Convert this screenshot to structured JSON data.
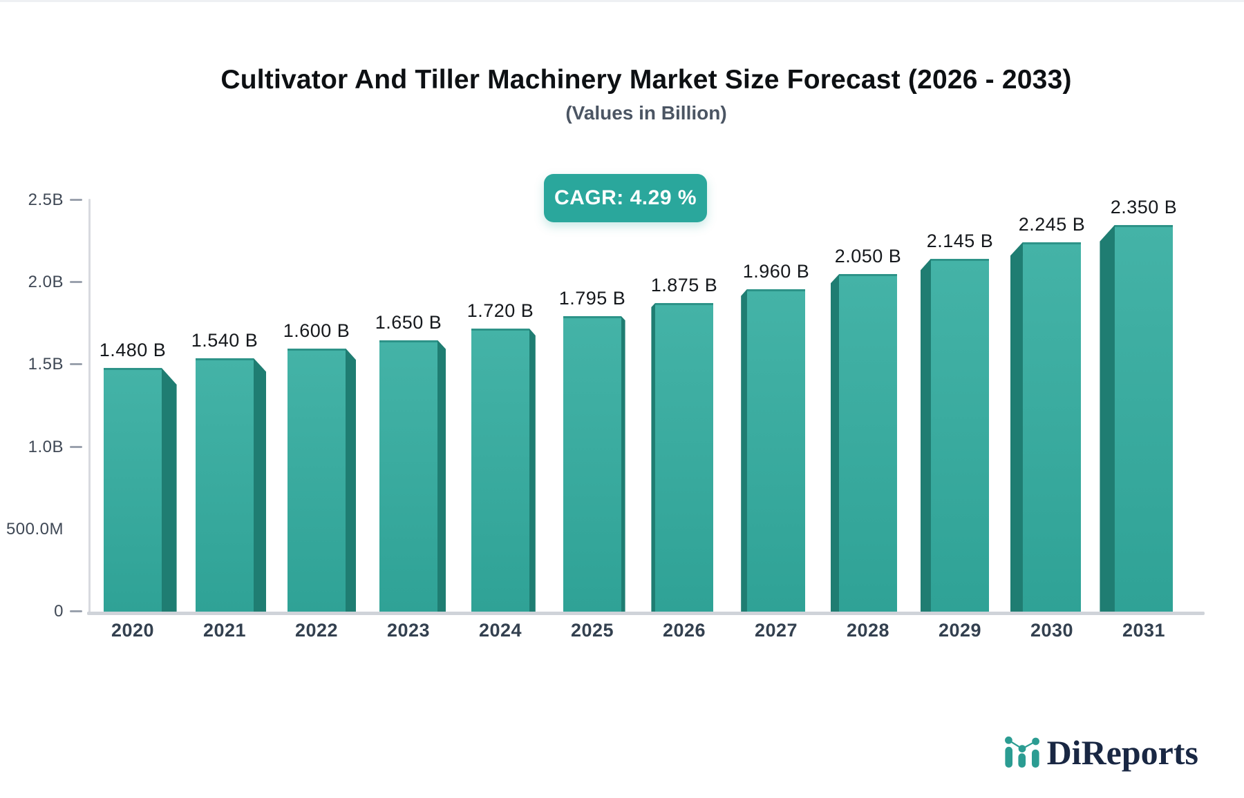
{
  "header": {
    "title": "Cultivator And Tiller Machinery Market Size Forecast (2026 - 2033)",
    "subtitle": "(Values in Billion)"
  },
  "cagr_badge": {
    "label": "CAGR: 4.29 %",
    "bg_color": "#2aa79c",
    "text_color": "#ffffff"
  },
  "chart_data": {
    "type": "bar",
    "title": "Cultivator And Tiller Machinery Market Size Forecast (2026 - 2033)",
    "subtitle": "(Values in Billion)",
    "categories": [
      "2020",
      "2021",
      "2022",
      "2023",
      "2024",
      "2025",
      "2026",
      "2027",
      "2028",
      "2029",
      "2030",
      "2031"
    ],
    "values": [
      1.48,
      1.54,
      1.6,
      1.65,
      1.72,
      1.795,
      1.875,
      1.96,
      2.05,
      2.145,
      2.245,
      2.35
    ],
    "value_labels": [
      "1.480 B",
      "1.540 B",
      "1.600 B",
      "1.650 B",
      "1.720 B",
      "1.795 B",
      "1.875 B",
      "1.960 B",
      "2.050 B",
      "2.145 B",
      "2.245 B",
      "2.350 B"
    ],
    "y_ticks": [
      {
        "label": "2.5B",
        "dash": true
      },
      {
        "label": "2.0B",
        "dash": true
      },
      {
        "label": "1.5B",
        "dash": true
      },
      {
        "label": "1.0B",
        "dash": true
      },
      {
        "label": "500.0M",
        "dash": false
      },
      {
        "label": "0",
        "dash": true
      }
    ],
    "ylim": [
      0,
      2.5
    ],
    "grid": false,
    "legend": false,
    "colors": {
      "bar_front_top": "#44b3a7",
      "bar_front_bottom": "#2fa296",
      "bar_top_edge": "#2d9388",
      "bar_side": "#1f7d72",
      "axis_line": "#d8dadf",
      "baseline": "#cfd3d9",
      "tick_dash": "#9aa1ad"
    }
  },
  "logo": {
    "text": "DiReports",
    "icon": "mini-bar-line-chart-icon",
    "icon_color": "#2b9c92",
    "text_color": "#192743"
  }
}
